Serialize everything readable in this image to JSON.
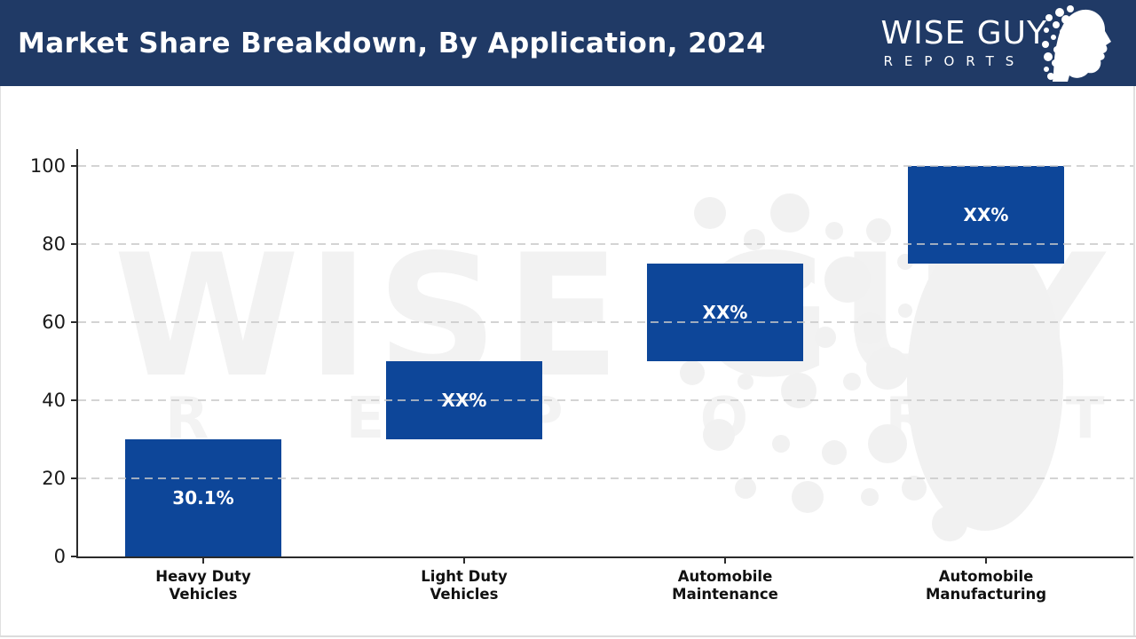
{
  "header": {
    "title": "Market Share Breakdown, By Application, 2024",
    "logo": {
      "line1": "WISE GUY",
      "line2": "REPORTS"
    },
    "bg_color": "#203a66"
  },
  "watermark": {
    "line1": "WISE GUY",
    "line2": "R E P O R T S"
  },
  "chart_data": {
    "type": "bar",
    "variant": "floating-segment-waterfall",
    "title": "Market Share Breakdown, By Application, 2024",
    "categories": [
      "Heavy Duty Vehicles",
      "Light Duty Vehicles",
      "Automobile Maintenance",
      "Automobile Manufacturing"
    ],
    "category_label_lines": [
      [
        "Heavy Duty",
        "Vehicles"
      ],
      [
        "Light Duty",
        "Vehicles"
      ],
      [
        "Automobile",
        "Maintenance"
      ],
      [
        "Automobile",
        "Manufacturing"
      ]
    ],
    "bars": [
      {
        "category": "Heavy Duty Vehicles",
        "start": 0,
        "end": 30.1,
        "label": "30.1%"
      },
      {
        "category": "Light Duty Vehicles",
        "start": 30.1,
        "end": 50,
        "label": "XX%"
      },
      {
        "category": "Automobile Maintenance",
        "start": 50,
        "end": 75,
        "label": "XX%"
      },
      {
        "category": "Automobile Manufacturing",
        "start": 75,
        "end": 100,
        "label": "XX%"
      }
    ],
    "xlabel": "",
    "ylabel": "",
    "yticks": [
      0,
      20,
      40,
      60,
      80,
      100
    ],
    "ylim": [
      0,
      105
    ],
    "grid": "horizontal dashed gridlines drawn over bars",
    "legend": "none",
    "bar_color": "#0d4699",
    "bar_label_color": "#ffffff"
  }
}
